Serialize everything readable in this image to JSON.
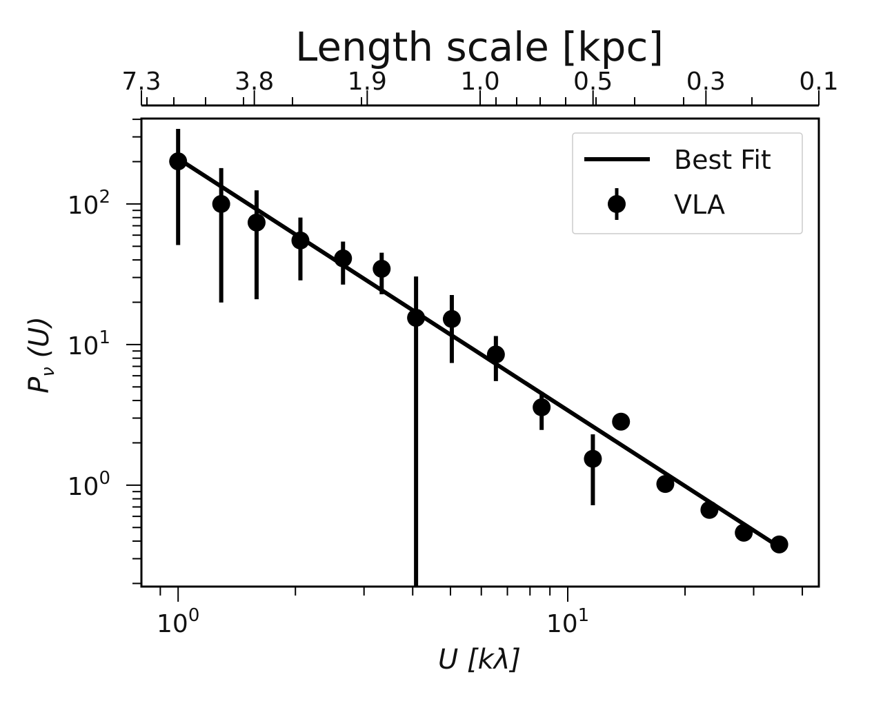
{
  "chart_data": {
    "type": "scatter",
    "title": "Length scale [kpc]",
    "xlabel": "U  [kλ]",
    "ylabel": "P_ν (U)",
    "ylabel_main": "P",
    "ylabel_sub": "ν",
    "ylabel_rest": " (U)",
    "xscale": "log",
    "yscale": "log",
    "xlim": [
      0.805,
      44.1
    ],
    "ylim": [
      0.19,
      405
    ],
    "x_ticks": [
      {
        "value": 1,
        "base": "10",
        "exp": "0"
      },
      {
        "value": 10,
        "base": "10",
        "exp": "1"
      }
    ],
    "y_ticks": [
      {
        "value": 1,
        "base": "10",
        "exp": "0"
      },
      {
        "value": 10,
        "base": "10",
        "exp": "1"
      },
      {
        "value": 100,
        "base": "10",
        "exp": "2"
      }
    ],
    "top_axis": {
      "label": "Length scale [kpc]",
      "tick_labels": [
        "7.3",
        "3.8",
        "1.9",
        "1.0",
        "0.5",
        "0.3",
        "0.1"
      ]
    },
    "legend": {
      "placement": "top-right",
      "entries": [
        "Best Fit",
        "VLA"
      ]
    },
    "series": [
      {
        "name": "VLA",
        "kind": "errorbar",
        "color": "#000000",
        "points": [
          {
            "x": 1.0,
            "y": 201,
            "ylo": 51,
            "yhi": 342
          },
          {
            "x": 1.29,
            "y": 100,
            "ylo": 19.9,
            "yhi": 180
          },
          {
            "x": 1.59,
            "y": 73.8,
            "ylo": 21,
            "yhi": 125
          },
          {
            "x": 2.06,
            "y": 55,
            "ylo": 28.6,
            "yhi": 80
          },
          {
            "x": 2.65,
            "y": 41,
            "ylo": 26.7,
            "yhi": 54
          },
          {
            "x": 3.33,
            "y": 34.6,
            "ylo": 22.8,
            "yhi": 45
          },
          {
            "x": 4.08,
            "y": 15.5,
            "ylo": 0.0001,
            "yhi": 30.5
          },
          {
            "x": 5.04,
            "y": 15.2,
            "ylo": 7.4,
            "yhi": 22.5
          },
          {
            "x": 6.54,
            "y": 8.5,
            "ylo": 5.5,
            "yhi": 11.5
          },
          {
            "x": 8.57,
            "y": 3.58,
            "ylo": 2.47,
            "yhi": 4.6
          },
          {
            "x": 11.6,
            "y": 1.54,
            "ylo": 0.72,
            "yhi": 2.3
          },
          {
            "x": 13.7,
            "y": 2.83,
            "ylo": 2.83,
            "yhi": 2.83
          },
          {
            "x": 17.8,
            "y": 1.02,
            "ylo": 1.02,
            "yhi": 1.02
          },
          {
            "x": 23.1,
            "y": 0.667,
            "ylo": 0.667,
            "yhi": 0.667
          },
          {
            "x": 28.3,
            "y": 0.459,
            "ylo": 0.459,
            "yhi": 0.459
          },
          {
            "x": 34.9,
            "y": 0.379,
            "ylo": 0.379,
            "yhi": 0.379
          }
        ]
      },
      {
        "name": "Best Fit",
        "kind": "line",
        "color": "#000000",
        "model": "power-law",
        "amplitude": 210,
        "slope": -1.79,
        "x_range": [
          1.02,
          34.9
        ]
      }
    ]
  }
}
